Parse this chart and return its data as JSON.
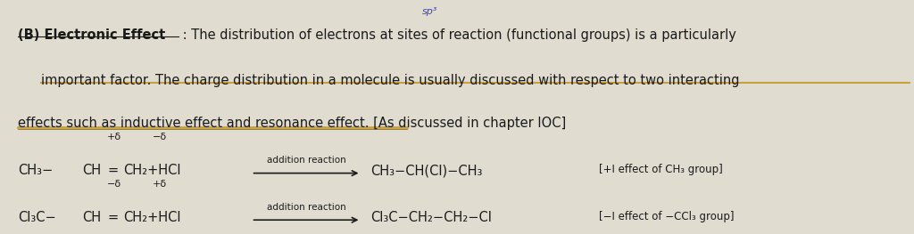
{
  "bg_color": "#e0ddd0",
  "text_color": "#1a1a1a",
  "underline_color": "#c8a040",
  "sp3_color": "#4444aa",
  "font_size_body": 10.5,
  "font_size_reaction": 10.5,
  "font_size_small": 8.0,
  "font_size_arrow_label": 7.5,
  "bold_text": "(B) Electronic Effect",
  "colon_text": " : The distribution of electrons at sites of reaction (functional groups) is a particularly",
  "line2": "important factor. The charge distribution in a molecule is usually discussed with respect to two interacting",
  "line3": "effects such as inductive effect and resonance effect. [As discussed in chapter IOC]",
  "r1_reactant": "CH₃−CH=CH₂+HCl",
  "r1_product": "CH₃−CH(Cl)−CH₃",
  "r1_effect": "[+I effect of CH₃ group]",
  "r1_delta_pos": "+δ",
  "r1_delta_neg": "−δ",
  "r1_arrow_text": "addition reaction",
  "r2_reactant": "Cl₃C−CH=CH₂+HCl",
  "r2_product": "Cl₃C−CH₂−CH₂−Cl",
  "r2_effect": "[−I effect of −CCl₃ group]",
  "r2_delta_neg": "−δ",
  "r2_delta_pos": "+δ",
  "r2_arrow_text": "addition reaction",
  "sp3_text": "sp³"
}
